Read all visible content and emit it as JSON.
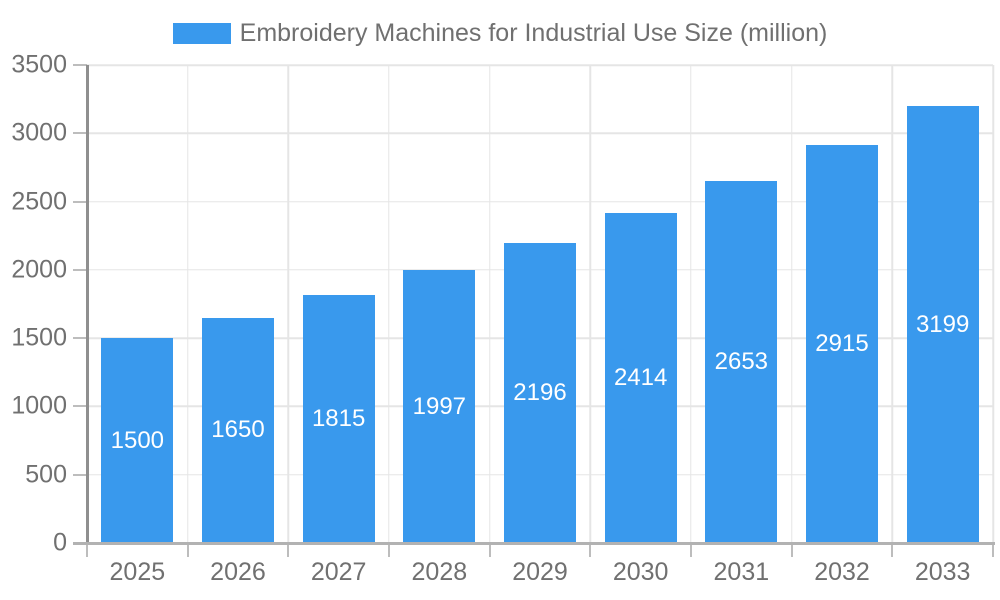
{
  "chart_data": {
    "type": "bar",
    "title": "Embroidery Machines for Industrial Use Size (million)",
    "categories": [
      "2025",
      "2026",
      "2027",
      "2028",
      "2029",
      "2030",
      "2031",
      "2032",
      "2033"
    ],
    "values": [
      1500,
      1650,
      1815,
      1997,
      2196,
      2414,
      2653,
      2915,
      3199
    ],
    "xlabel": "",
    "ylabel": "",
    "ylim": [
      0,
      3500
    ],
    "yticks": [
      0,
      500,
      1000,
      1500,
      2000,
      2500,
      3000,
      3500
    ],
    "grid": true,
    "legend_position": "top",
    "value_labels_position": "inside-center",
    "bar_color": "#3999ED",
    "value_label_color": "#FFFFFF",
    "axis_text_color": "#707070",
    "gridline_color": "#E5E5E5",
    "y_axis_line_color": "#8F8F8F",
    "x_axis_line_color": "#B2B2B2"
  }
}
